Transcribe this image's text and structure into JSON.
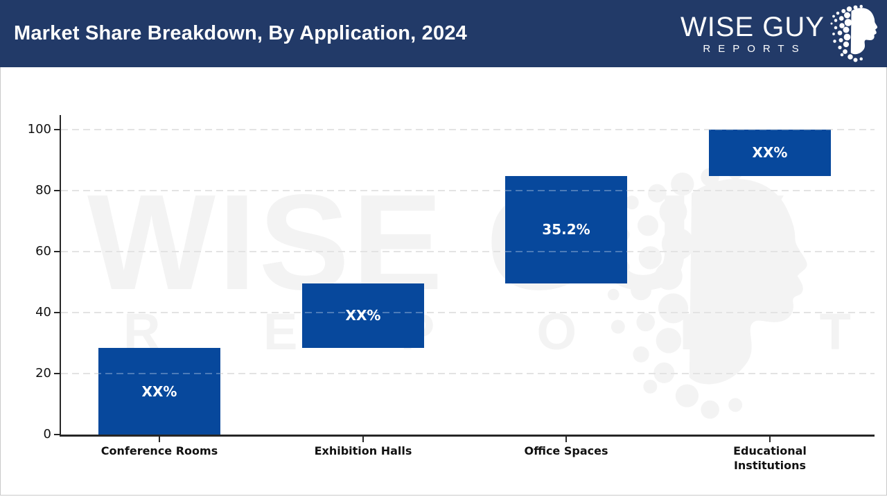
{
  "header": {
    "title": "Market Share Breakdown, By Application, 2024",
    "logo": {
      "line1": "WISE GUY",
      "line2": "REPORTS"
    }
  },
  "watermark": {
    "line1": "WISE GUY",
    "line2": "R E P O R T S"
  },
  "colors": {
    "header_bg": "#223A68",
    "bar": "#07489C",
    "gridline": "#d8d8d8",
    "axis": "#262626",
    "watermark": "#f3f3f3",
    "bar_label": "#ffffff"
  },
  "chart_data": {
    "type": "bar",
    "subtype": "waterfall",
    "title": "Market Share Breakdown, By Application, 2024",
    "xlabel": "",
    "ylabel": "",
    "ylim": [
      0,
      100
    ],
    "yticks": [
      0,
      20,
      40,
      60,
      80,
      100
    ],
    "grid": "dashed horizontal",
    "legend": "none",
    "categories": [
      "Conference Rooms",
      "Exhibition Halls",
      "Office Spaces",
      "Educational Institutions"
    ],
    "category_label_lines": [
      [
        "Conference Rooms"
      ],
      [
        "Exhibition Halls"
      ],
      [
        "Office Spaces"
      ],
      [
        "Educational",
        "Institutions"
      ]
    ],
    "values": [
      28.4,
      21.2,
      35.2,
      15.2
    ],
    "segments": [
      {
        "category": "Conference Rooms",
        "start": 0,
        "end": 28.4,
        "label": "XX%"
      },
      {
        "category": "Exhibition Halls",
        "start": 28.4,
        "end": 49.6,
        "label": "XX%"
      },
      {
        "category": "Office Spaces",
        "start": 49.6,
        "end": 84.8,
        "label": "35.2%"
      },
      {
        "category": "Educational Institutions",
        "start": 84.8,
        "end": 100,
        "label": "XX%"
      }
    ]
  }
}
